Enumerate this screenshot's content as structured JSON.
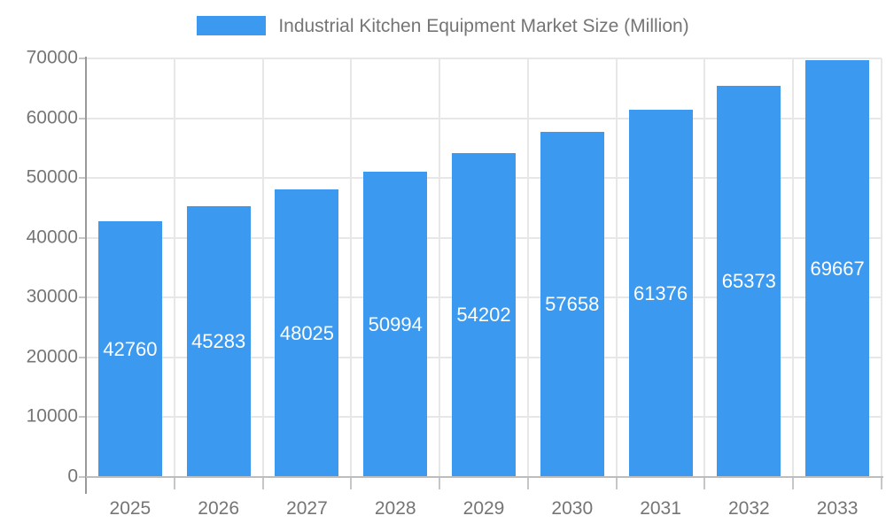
{
  "chart_data": {
    "type": "bar",
    "title": "Industrial Kitchen Equipment Market Size (Million)",
    "categories": [
      "2025",
      "2026",
      "2027",
      "2028",
      "2029",
      "2030",
      "2031",
      "2032",
      "2033"
    ],
    "values": [
      42760,
      45283,
      48025,
      50994,
      54202,
      57658,
      61376,
      65373,
      69667
    ],
    "series": [
      {
        "name": "Industrial Kitchen Equipment Market Size (Million)",
        "values": [
          42760,
          45283,
          48025,
          50994,
          54202,
          57658,
          61376,
          65373,
          69667
        ]
      }
    ],
    "xlabel": "",
    "ylabel": "",
    "ylim": [
      0,
      70000
    ],
    "ytick_step": 10000,
    "yticks": [
      "0",
      "10000",
      "20000",
      "30000",
      "40000",
      "50000",
      "60000",
      "70000"
    ],
    "grid": "on",
    "legend_position": "top-center",
    "value_labels": "inside-middle",
    "colors": {
      "bar": "#3B99F0",
      "grid": "#E7E7E7",
      "y_axis_line": "#999999",
      "x_axis_line": "#BDBDBD",
      "tick": "#C6C6C6",
      "axis_text": "#757575",
      "value_text": "#FFFFFF",
      "background": "#FFFFFF"
    }
  }
}
